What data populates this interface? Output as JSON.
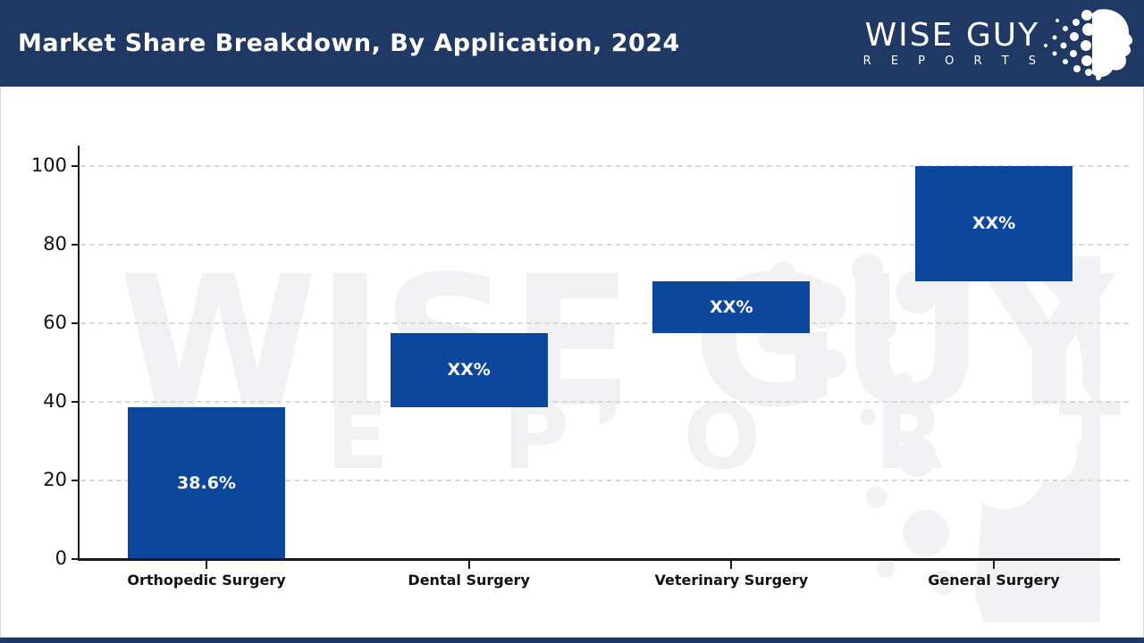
{
  "header": {
    "title": "Market Share Breakdown, By Application, 2024",
    "bg_color": "#1f3864",
    "logo": {
      "line1": "WISE GUY",
      "line2": "R E P O R T S"
    }
  },
  "watermark": {
    "line1": "WISE GUY",
    "line2": "R E P O R T S",
    "color": "#f1f1f3"
  },
  "chart_data": {
    "type": "bar",
    "subtype": "waterfall",
    "title": "Market Share Breakdown, By Application, 2024",
    "categories": [
      "Orthopedic Surgery",
      "Dental Surgery",
      "Veterinary Surgery",
      "General Surgery"
    ],
    "segments": [
      {
        "category": "Orthopedic Surgery",
        "start": 0,
        "end": 38.6,
        "label": "38.6%"
      },
      {
        "category": "Dental Surgery",
        "start": 38.6,
        "end": 57.6,
        "label": "XX%"
      },
      {
        "category": "Veterinary Surgery",
        "start": 57.6,
        "end": 70.7,
        "label": "XX%"
      },
      {
        "category": "General Surgery",
        "start": 70.7,
        "end": 100,
        "label": "XX%"
      }
    ],
    "y_ticks": [
      0,
      20,
      40,
      60,
      80,
      100
    ],
    "ylim": [
      0,
      105
    ],
    "xlabel": "",
    "ylabel": "",
    "grid": "horizontal-dashed",
    "legend": "none",
    "bar_color": "#0c479c",
    "bar_label_color": "#ffffff",
    "gridline_color": "#d9d9d9",
    "axis_color": "#1a1a1a"
  }
}
